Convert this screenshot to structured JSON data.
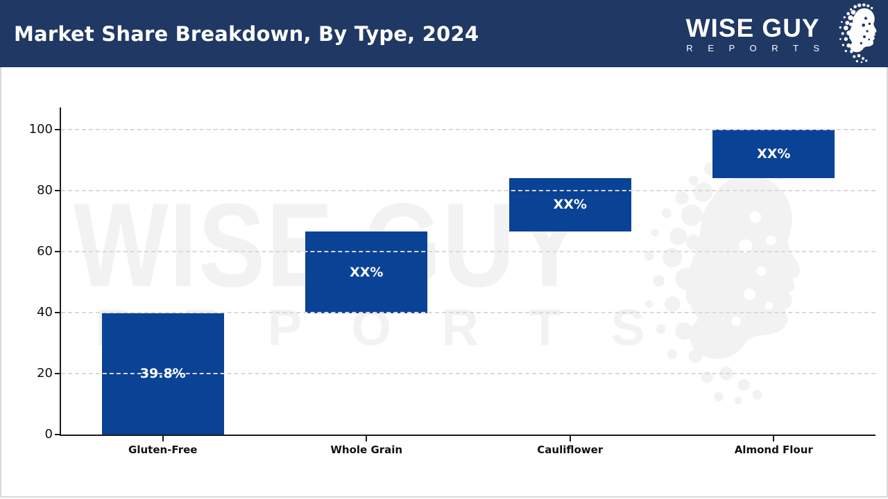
{
  "header": {
    "title": "Market Share Breakdown, By Type, 2024",
    "logo": {
      "line1": "WISE GUY",
      "line2": "R E P O R T S"
    }
  },
  "watermark": {
    "line1": "WISE GUY",
    "line2": "R E P O R T S"
  },
  "chart_data": {
    "type": "bar",
    "subtype": "waterfall",
    "title": "Market Share Breakdown, By Type, 2024",
    "categories": [
      "Gluten-Free",
      "Whole Grain",
      "Cauliflower",
      "Almond Flour"
    ],
    "segments": [
      {
        "category": "Gluten-Free",
        "start": 0,
        "end": 39.8,
        "label": "39.8%"
      },
      {
        "category": "Whole Grain",
        "start": 39.8,
        "end": 66.5,
        "label": "XX%"
      },
      {
        "category": "Cauliflower",
        "start": 66.5,
        "end": 84.2,
        "label": "XX%"
      },
      {
        "category": "Almond Flour",
        "start": 84.2,
        "end": 100,
        "label": "XX%"
      }
    ],
    "ylim": [
      0,
      100
    ],
    "yticks": [
      0,
      20,
      40,
      60,
      80,
      100
    ],
    "xlabel": "",
    "ylabel": "",
    "grid": "horizontal-dashed",
    "legend": "none",
    "bar_color": "#0a4296",
    "bar_label_color": "#ffffff",
    "header_bg_color": "#1f3864",
    "watermark_color": "#f2f2f2",
    "gridline_color": "#d9d9d9"
  }
}
